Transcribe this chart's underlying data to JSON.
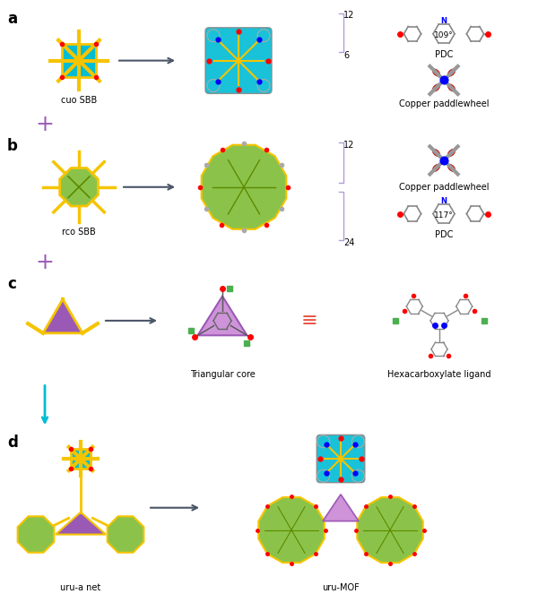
{
  "panel_labels": [
    "a",
    "b",
    "c",
    "d"
  ],
  "panel_label_color": "black",
  "panel_label_fontsize": 12,
  "panel_label_fontweight": "bold",
  "arrow_color": "#4a5568",
  "plus_color": "#9b59b6",
  "plus_fontsize": 18,
  "down_arrow_color": "#00bcd4",
  "bracket_color": "#b39ddb",
  "label_numbers_a": [
    "12",
    "6"
  ],
  "label_numbers_b": [
    "12",
    "24"
  ],
  "labels_a": [
    "PDC\n109°",
    "Copper paddlewheel"
  ],
  "labels_b": [
    "Copper paddlewheel",
    "PDC\n117°"
  ],
  "sbb_labels": [
    "cuo SBB",
    "rco SBB"
  ],
  "bottom_labels": [
    "Triangular core",
    "Hexacarboxylate ligand"
  ],
  "net_labels": [
    "uru-a net",
    "uru-MOF"
  ],
  "background_color": "white",
  "fig_width": 6.0,
  "fig_height": 6.63,
  "title": ""
}
